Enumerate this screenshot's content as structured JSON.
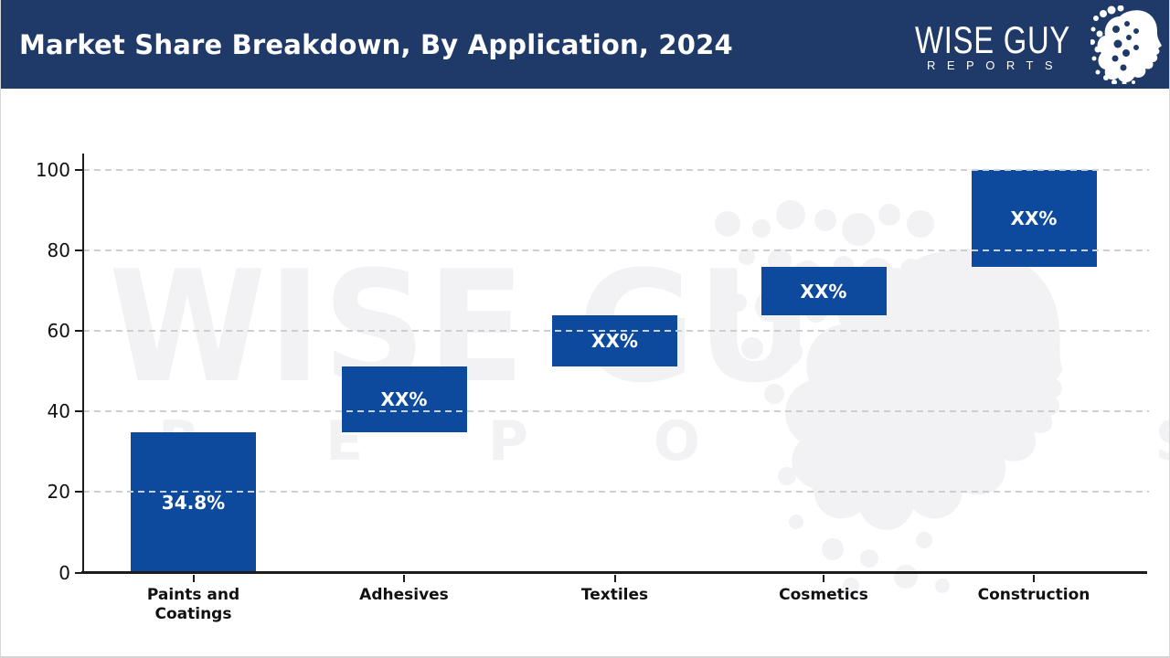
{
  "header": {
    "title": "Market Share Breakdown, By Application, 2024",
    "logo": {
      "primary": "WISE GUY",
      "secondary": "REPORTS"
    }
  },
  "watermark": {
    "primary": "WISE GUY",
    "secondary": "R E P O R T S"
  },
  "chart_data": {
    "type": "bar",
    "subtype": "waterfall",
    "title": "Market Share Breakdown, By Application, 2024",
    "xlabel": "",
    "ylabel": "",
    "ylim": [
      0,
      105
    ],
    "yticks": [
      0,
      20,
      40,
      60,
      80,
      100
    ],
    "grid": "horizontal dashed, drawn over bars",
    "legend": "none",
    "categories": [
      "Paints and Coatings",
      "Adhesives",
      "Textiles",
      "Cosmetics",
      "Construction"
    ],
    "bars": [
      {
        "category": "Paints and Coatings",
        "start": 0,
        "end": 34.8,
        "label": "34.8%"
      },
      {
        "category": "Adhesives",
        "start": 34.8,
        "end": 51.2,
        "label": "XX%"
      },
      {
        "category": "Textiles",
        "start": 51.2,
        "end": 63.8,
        "label": "XX%"
      },
      {
        "category": "Cosmetics",
        "start": 63.8,
        "end": 76.0,
        "label": "XX%"
      },
      {
        "category": "Construction",
        "start": 76.0,
        "end": 100.0,
        "label": "XX%"
      }
    ]
  },
  "colors": {
    "header_bg": "#1f3a68",
    "bar": "#0d4a9e",
    "grid": "#cfcfcf",
    "axis": "#1c1c1c",
    "watermark": "#f2f2f4",
    "title_text": "#ffffff"
  }
}
